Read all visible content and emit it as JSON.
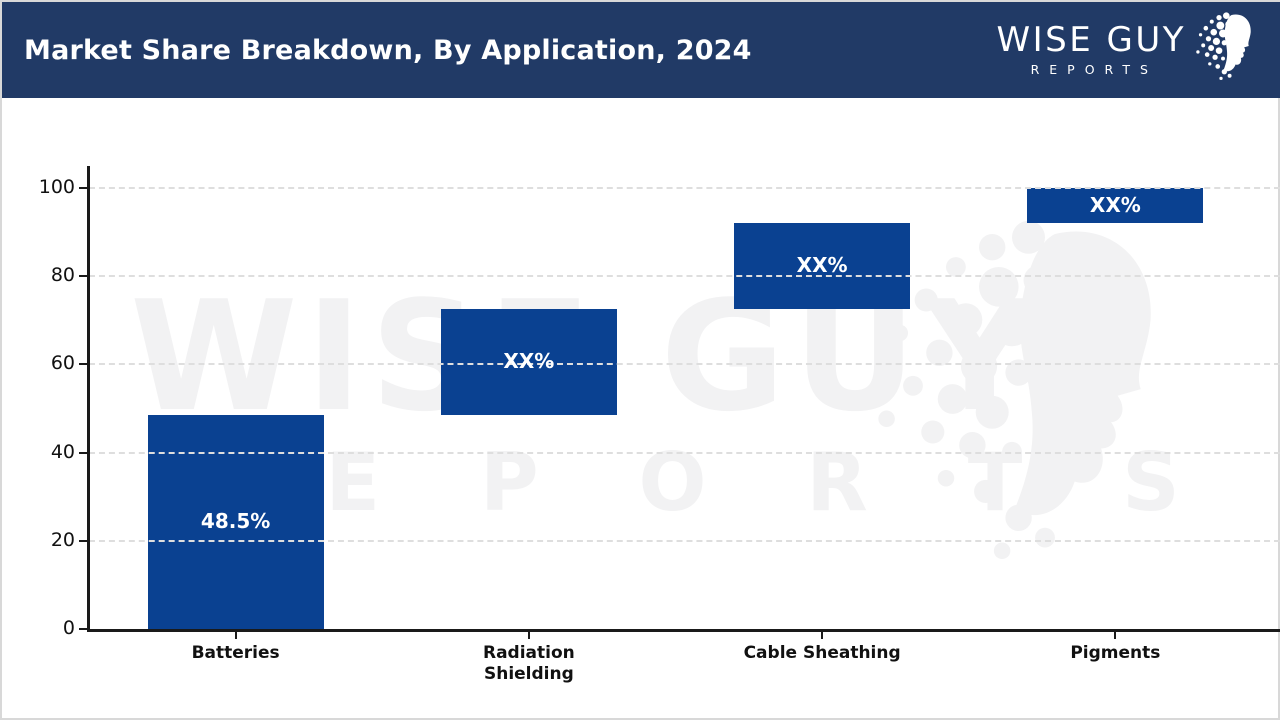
{
  "header": {
    "title": "Market Share Breakdown, By Application, 2024",
    "logo": {
      "line1": "WISE GUY",
      "line2": "REPORTS"
    }
  },
  "watermark": {
    "line1": "WISE GUY",
    "line2": "R E P O R T S"
  },
  "colors": {
    "header_bg": "#213A66",
    "bar": "#0A4191",
    "bar_label": "#FFFFFF",
    "gridline": "#DEDEDE",
    "axis": "#1A1A1A",
    "tick_label": "#111111",
    "watermark": "#F2F2F3",
    "frame_border": "#D8D8D8",
    "background": "#FFFFFF"
  },
  "chart_data": {
    "type": "bar",
    "subtype": "floating-waterfall",
    "title": "Market Share Breakdown, By Application, 2024",
    "categories": [
      "Batteries",
      "Radiation\nShielding",
      "Cable Sheathing",
      "Pigments"
    ],
    "bars": [
      {
        "category": "Batteries",
        "start": 0,
        "end": 48.5,
        "label": "48.5%"
      },
      {
        "category": "Radiation\nShielding",
        "start": 48.5,
        "end": 72.5,
        "label": "XX%"
      },
      {
        "category": "Cable Sheathing",
        "start": 72.5,
        "end": 92,
        "label": "XX%"
      },
      {
        "category": "Pigments",
        "start": 92,
        "end": 100,
        "label": "XX%"
      }
    ],
    "yticks": [
      0,
      20,
      40,
      60,
      80,
      100
    ],
    "ylim": [
      0,
      105
    ],
    "xlabel": "",
    "ylabel": "",
    "grid": "horizontal-dashed",
    "legend": null
  }
}
